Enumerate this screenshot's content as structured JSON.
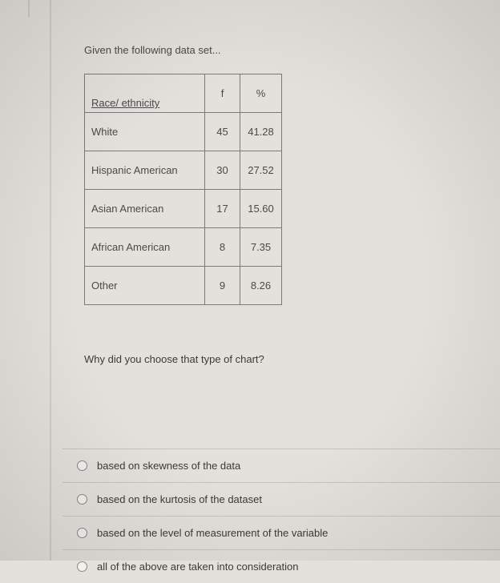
{
  "prompt": "Given the following data set...",
  "table": {
    "header_label": "Race/ ethnicity",
    "col_f": "f",
    "col_p": "%",
    "rows": [
      {
        "label": "White",
        "f": "45",
        "p": "41.28"
      },
      {
        "label": "Hispanic American",
        "f": "30",
        "p": "27.52"
      },
      {
        "label": "Asian American",
        "f": "17",
        "p": "15.60"
      },
      {
        "label": "African American",
        "f": "8",
        "p": "7.35"
      },
      {
        "label": "Other",
        "f": "9",
        "p": "8.26"
      }
    ]
  },
  "question2": "Why did you choose that type of chart?",
  "options": [
    "based on skewness of the data",
    "based on the kurtosis of the dataset",
    "based on the level of measurement of the variable",
    "all of the above are taken into consideration"
  ]
}
